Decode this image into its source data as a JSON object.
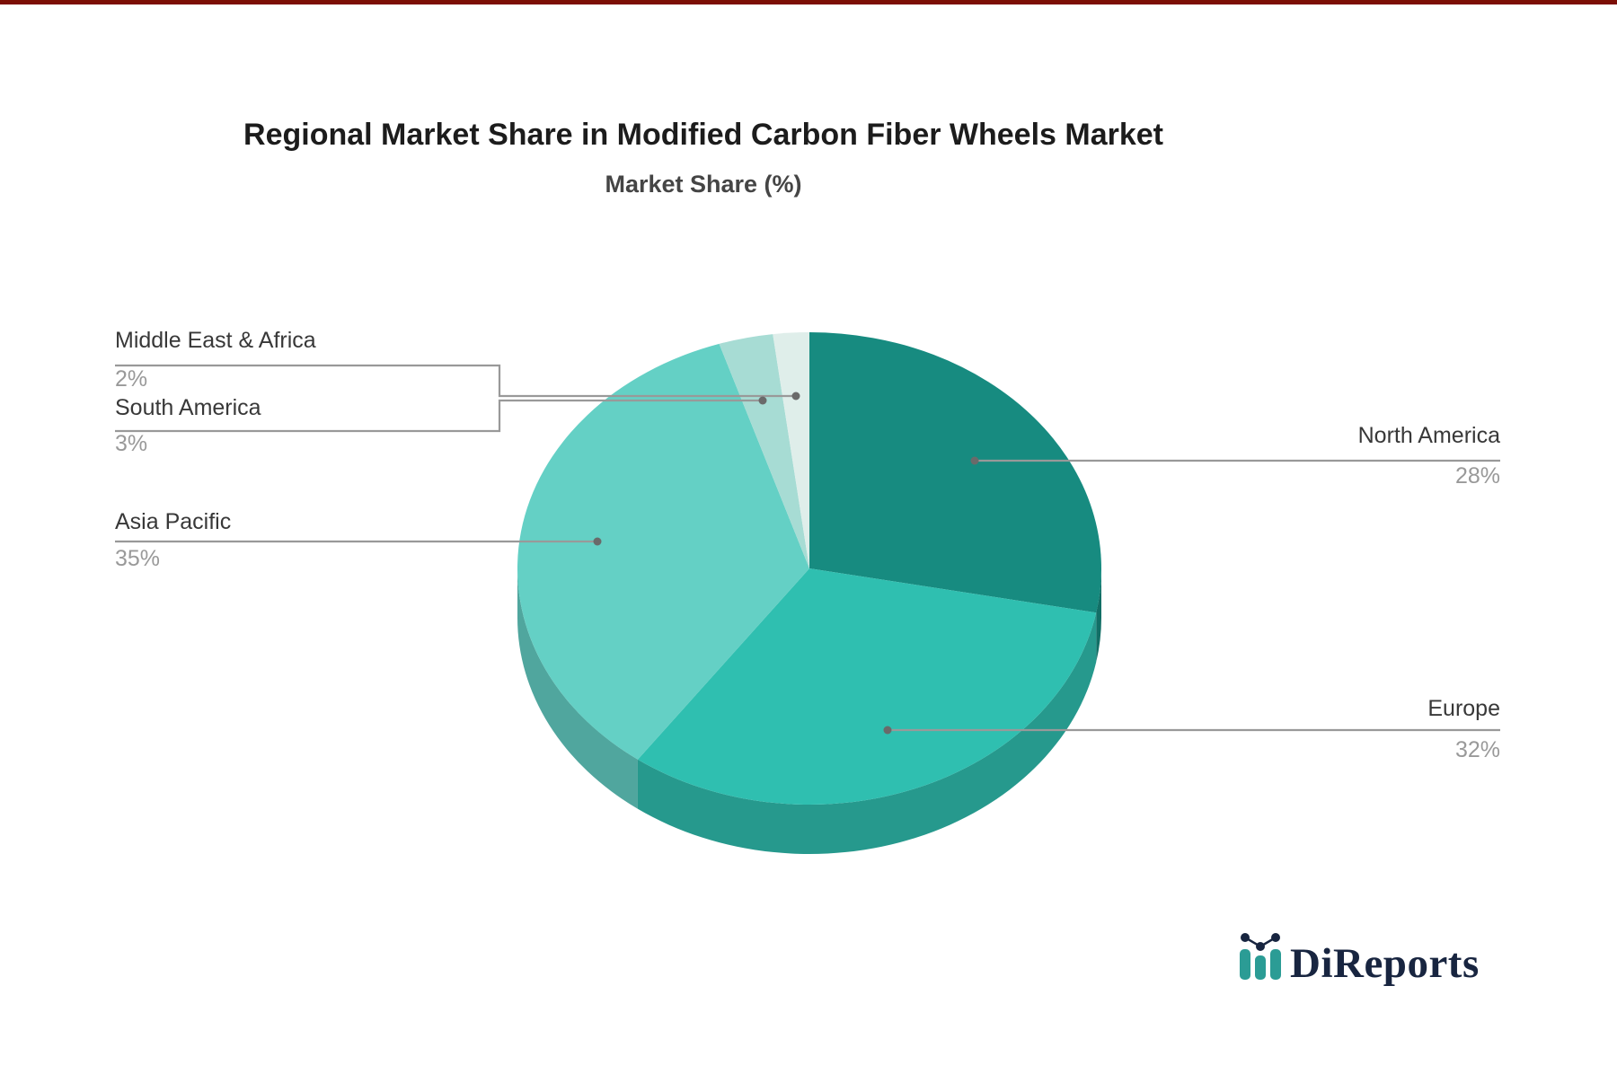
{
  "page": {
    "background": "#ffffff",
    "top_border_color": "#7c0f05"
  },
  "chart_data": {
    "type": "pie",
    "style": "3d-pie",
    "title": "Regional Market Share in Modified Carbon Fiber Wheels Market",
    "subtitle": "Market Share (%)",
    "unit": "%",
    "start_angle_deg": -90,
    "direction": "clockwise",
    "legend_position": "none",
    "categories": [
      "North America",
      "Europe",
      "Asia Pacific",
      "South America",
      "Middle East & Africa"
    ],
    "values": [
      28,
      32,
      35,
      3,
      2
    ],
    "colors": [
      "#178b80",
      "#2fbfb0",
      "#64d0c5",
      "#a7dcd4",
      "#dfeeea"
    ],
    "leader_line_color": "#999999",
    "leader_dot_color": "#6a6a6a"
  },
  "labels": {
    "north_america": {
      "name": "North America",
      "value": "28%"
    },
    "europe": {
      "name": "Europe",
      "value": "32%"
    },
    "asia_pacific": {
      "name": "Asia Pacific",
      "value": "35%"
    },
    "south_america": {
      "name": "South America",
      "value": "3%"
    },
    "middle_east_africa": {
      "name": "Middle East & Africa",
      "value": "2%"
    }
  },
  "branding": {
    "logo_text": "DiReports",
    "logo_navy": "#182540",
    "logo_teal": "#2b9c95"
  }
}
